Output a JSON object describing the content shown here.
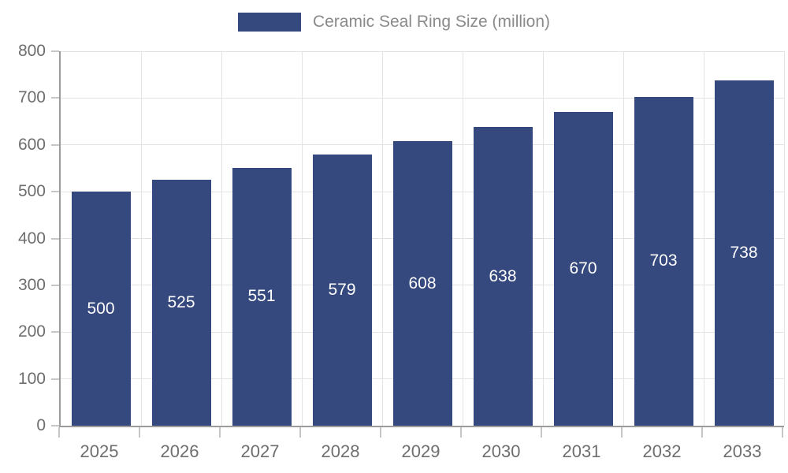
{
  "legend": {
    "label": "Ceramic Seal Ring Size (million)"
  },
  "chart_data": {
    "type": "bar",
    "title": "Ceramic Seal Ring Size (million)",
    "categories": [
      "2025",
      "2026",
      "2027",
      "2028",
      "2029",
      "2030",
      "2031",
      "2032",
      "2033"
    ],
    "values": [
      500,
      525,
      551,
      579,
      608,
      638,
      670,
      703,
      738
    ],
    "series": [
      {
        "name": "Ceramic Seal Ring Size (million)",
        "values": [
          500,
          525,
          551,
          579,
          608,
          638,
          670,
          703,
          738
        ]
      }
    ],
    "xlabel": "",
    "ylabel": "",
    "ylim": [
      0,
      800
    ],
    "ytick_interval": 100,
    "ytick_labels": [
      "0",
      "100",
      "200",
      "300",
      "400",
      "500",
      "600",
      "700",
      "800"
    ],
    "grid": true,
    "legend_position": "top-center",
    "value_labels": "inside-center",
    "colors": {
      "bar": "#36497e",
      "bar_value_label": "#ffffff",
      "grid_line": "#e3e3e3",
      "axis_line": "#9b9b9b",
      "tick_mark": "#c6c6c6",
      "axis_label": "#6e6e6e",
      "legend_text": "#8a8a8a",
      "background": "#ffffff"
    }
  }
}
